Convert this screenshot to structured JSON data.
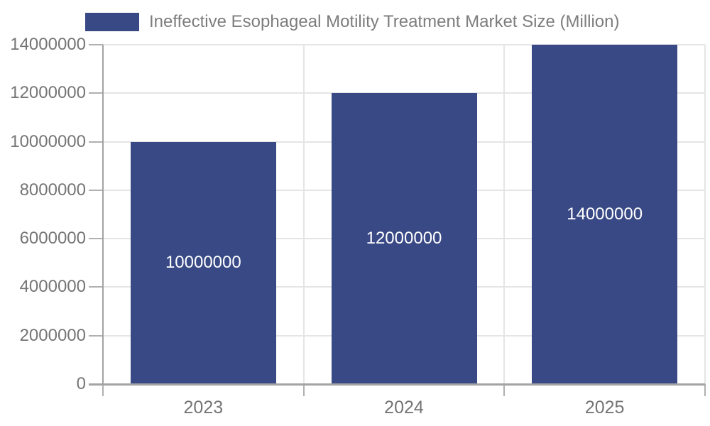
{
  "chart_data": {
    "type": "bar",
    "title": "Ineffective Esophageal Motility Treatment Market Size (Million)",
    "categories": [
      "2023",
      "2024",
      "2025"
    ],
    "values": [
      10000000,
      12000000,
      14000000
    ],
    "bar_labels": [
      "10000000",
      "12000000",
      "14000000"
    ],
    "ylim": [
      0,
      14000000
    ],
    "ytick_step": 2000000,
    "ytick_labels": [
      "0",
      "2000000",
      "4000000",
      "6000000",
      "8000000",
      "10000000",
      "12000000",
      "14000000"
    ],
    "xlabel": "",
    "ylabel": "",
    "grid": true,
    "legend_position": "top",
    "colors": {
      "bar": "#394986",
      "grid_line": "#e5e5e5",
      "axis_line": "#a3a3a3",
      "tick_mark": "#b0b0b0",
      "tick_label": "#757575",
      "legend_text": "#7d7d7d",
      "bar_label": "#ffffff",
      "background": "#ffffff"
    }
  }
}
